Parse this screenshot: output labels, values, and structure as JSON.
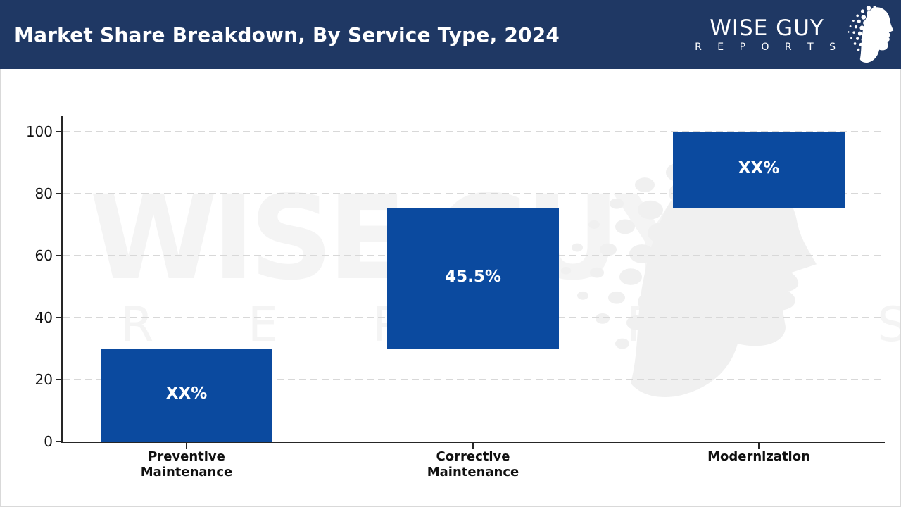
{
  "header": {
    "title": "Market Share Breakdown, By Service Type, 2024",
    "logo": {
      "wordmark": "WISE GUY",
      "subtext": "R E P O R T S"
    }
  },
  "watermark": {
    "line1": "WISE GUY",
    "line2": "R E P O R T S"
  },
  "chart_data": {
    "type": "bar",
    "subtype": "waterfall",
    "title": "Market Share Breakdown, By Service Type, 2024",
    "xlabel": "",
    "ylabel": "",
    "categories": [
      "Preventive\nMaintenance",
      "Corrective\nMaintenance",
      "Modernization"
    ],
    "bars": [
      {
        "category": "Preventive Maintenance",
        "start": 0,
        "end": 30,
        "value": 30,
        "label": "XX%"
      },
      {
        "category": "Corrective Maintenance",
        "start": 30,
        "end": 75.5,
        "value": 45.5,
        "label": "45.5%"
      },
      {
        "category": "Modernization",
        "start": 75.5,
        "end": 100,
        "value": 24.5,
        "label": "XX%"
      }
    ],
    "yticks": [
      0,
      20,
      40,
      60,
      80,
      100
    ],
    "ylim": [
      0,
      105
    ],
    "grid": "horizontal-dashed",
    "legend": "none",
    "colors": {
      "header_background": "#1f3864",
      "bar": "#0b4a9f",
      "bar_label": "#ffffff",
      "grid": "#d8d8d8",
      "axis": "#262626",
      "tick_label": "#111111",
      "watermark": "#f4f4f4"
    }
  }
}
